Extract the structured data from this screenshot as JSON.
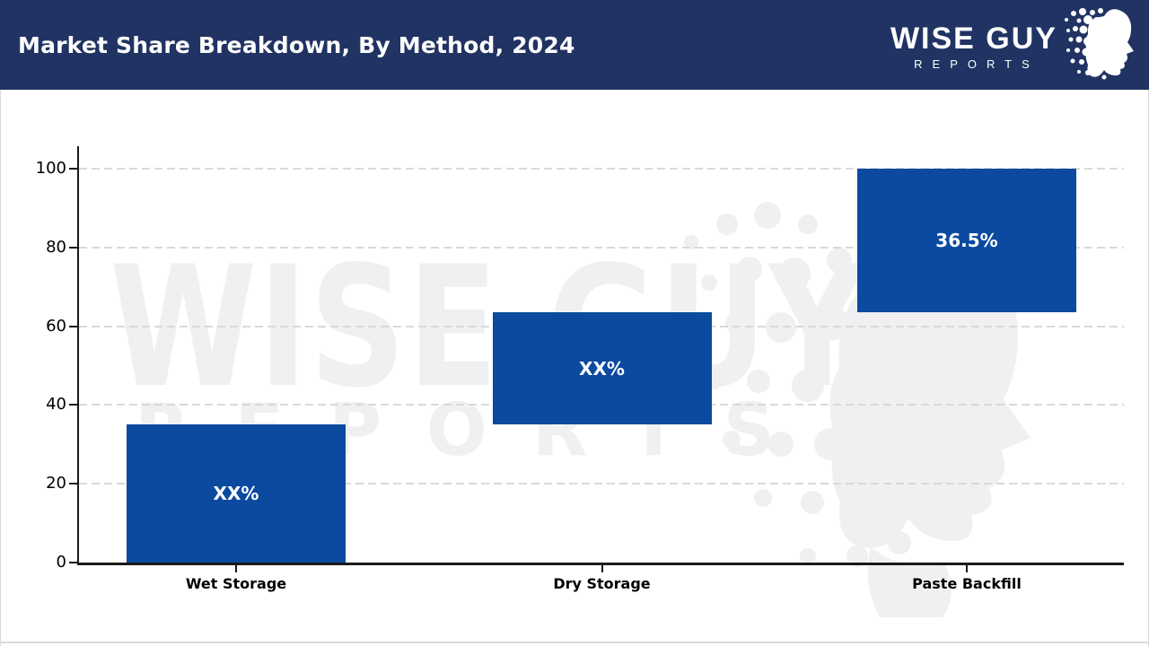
{
  "header": {
    "title": "Market Share Breakdown, By Method, 2024",
    "bg_color": "#203363",
    "logo": {
      "line1": "WISE GUY",
      "line2": "REPORTS"
    }
  },
  "watermark": {
    "line1": "WISE GUY",
    "line2": "REPORTS"
  },
  "chart_data": {
    "type": "bar",
    "subtype": "waterfall",
    "title": "Market Share Breakdown, By Method, 2024",
    "categories": [
      "Wet Storage",
      "Dry Storage",
      "Paste Backfill"
    ],
    "segments": [
      {
        "category": "Wet Storage",
        "start": 0,
        "end": 35,
        "value_label": "XX%"
      },
      {
        "category": "Dry Storage",
        "start": 35,
        "end": 63.5,
        "value_label": "XX%"
      },
      {
        "category": "Paste Backfill",
        "start": 63.5,
        "end": 100,
        "value_label": "36.5%"
      }
    ],
    "xlabel": "",
    "ylabel": "",
    "ylim": [
      0,
      105
    ],
    "yticks": [
      0,
      20,
      40,
      60,
      80,
      100
    ],
    "grid": "horizontal-dashed",
    "legend": "none",
    "bar_color": "#0b4a9f"
  }
}
